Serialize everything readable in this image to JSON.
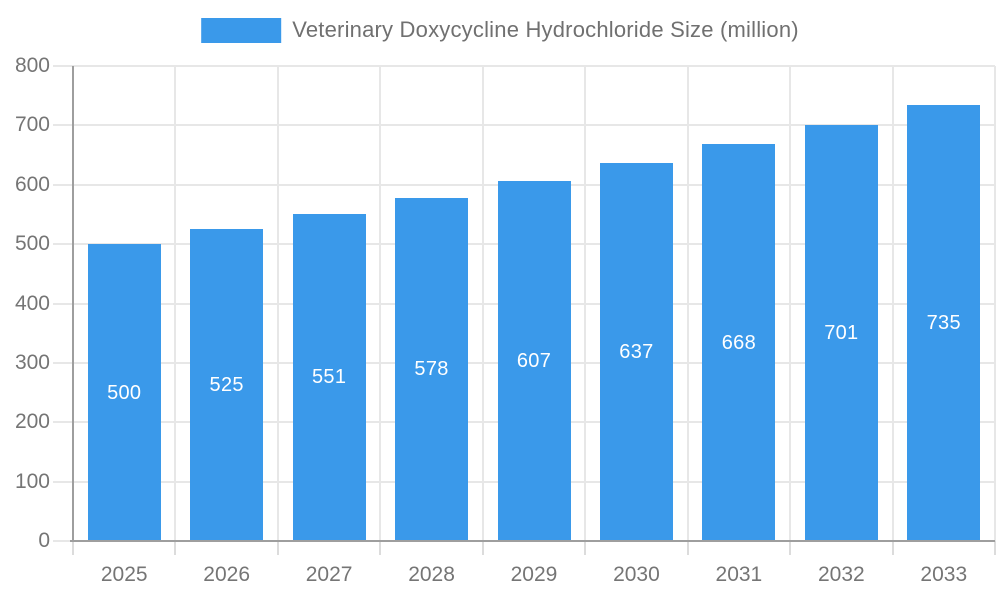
{
  "chart_data": {
    "type": "bar",
    "title": "Veterinary Doxycycline Hydrochloride Size (million)",
    "categories": [
      "2025",
      "2026",
      "2027",
      "2028",
      "2029",
      "2030",
      "2031",
      "2032",
      "2033"
    ],
    "values": [
      500,
      525,
      551,
      578,
      607,
      637,
      668,
      701,
      735
    ],
    "xlabel": "",
    "ylabel": "",
    "ylim": [
      0,
      800
    ],
    "yticks": [
      0,
      100,
      200,
      300,
      400,
      500,
      600,
      700,
      800
    ],
    "grid": true,
    "legend_position": "top",
    "colors": {
      "bar": "#3a99ea",
      "bar_value_text": "#ffffff",
      "axis_text": "#757575",
      "legend_text": "#707070",
      "gridline": "#e7e7e7",
      "tick": "#dcdcdc",
      "axis_line": "#9e9e9e",
      "background": "#ffffff"
    }
  }
}
